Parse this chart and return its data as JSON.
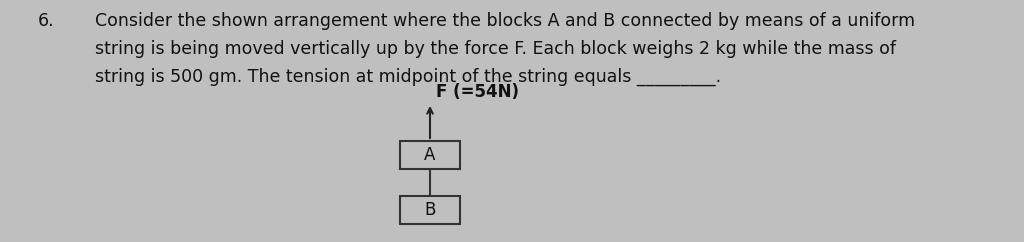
{
  "background_color": "#c0bfbf",
  "question_number": "6.",
  "question_line1": "Consider the shown arrangement where the blocks A and B connected by means of a uniform",
  "question_line2": "string is being moved vertically up by the force F. Each block weighs 2 kg while the mass of",
  "question_line3": "string is 500 gm. The tension at midpoint of the string equals _________.",
  "question_fontsize": 12.5,
  "force_label": "F (=54N)",
  "block_A_label": "A",
  "block_B_label": "B",
  "text_color": "#111111",
  "box_edge_color": "#333333",
  "line_color": "#333333",
  "arrow_color": "#222222",
  "label_fontsize": 12,
  "force_fontsize": 12
}
